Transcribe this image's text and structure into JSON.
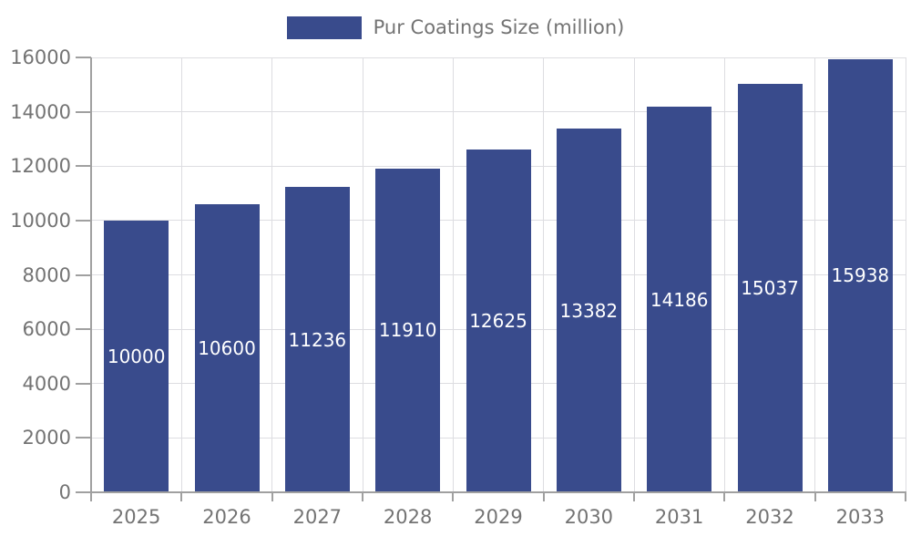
{
  "chart_data": {
    "type": "bar",
    "title": "Pur Coatings Size (million)",
    "legend_label": "Pur Coatings Size (million)",
    "legend_position": "top-center",
    "categories": [
      "2025",
      "2026",
      "2027",
      "2028",
      "2029",
      "2030",
      "2031",
      "2032",
      "2033"
    ],
    "series": [
      {
        "name": "Pur Coatings Size (million)",
        "values": [
          10000,
          10600,
          11236,
          11910,
          12625,
          13382,
          14186,
          15037,
          15938
        ]
      }
    ],
    "bar_value_labels": [
      "10000",
      "10600",
      "11236",
      "11910",
      "12625",
      "13382",
      "14186",
      "15037",
      "15938"
    ],
    "xlabel": "",
    "ylabel": "",
    "ylim": [
      0,
      16000
    ],
    "ytick_step": 2000,
    "ytick_labels": [
      "0",
      "2000",
      "4000",
      "6000",
      "8000",
      "10000",
      "12000",
      "14000",
      "16000"
    ],
    "grid": true
  },
  "colors": {
    "bar": "#394b8c",
    "axis": "#a0a0a0",
    "grid": "#dddde1",
    "tick_label": "#737373",
    "legend_text": "#737373",
    "bar_label": "#ffffff",
    "background": "#ffffff"
  }
}
